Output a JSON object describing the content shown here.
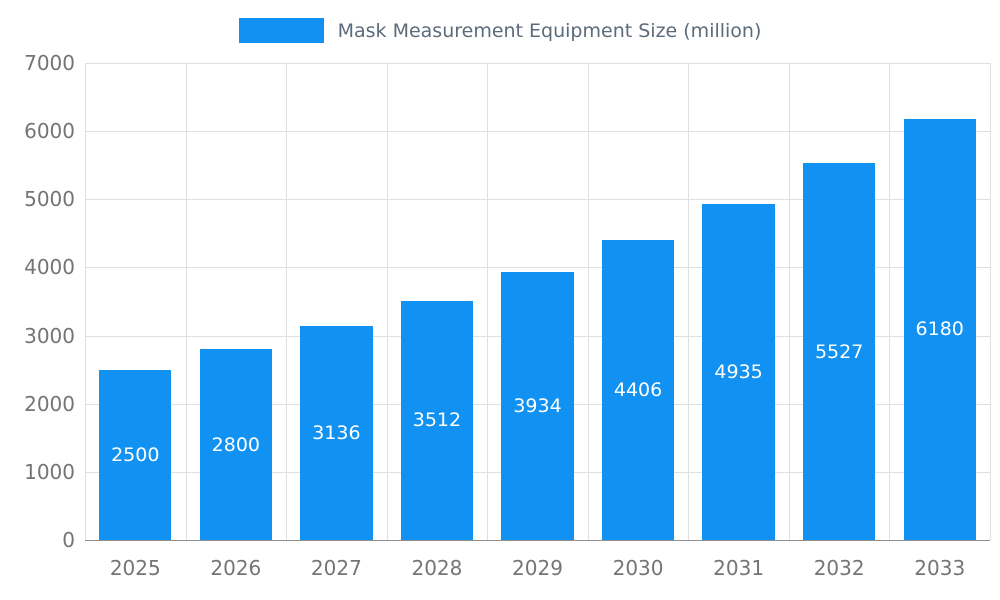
{
  "legend": {
    "label": "Mask Measurement Equipment Size (million)"
  },
  "chart_data": {
    "type": "bar",
    "title": "Mask Measurement Equipment Size (million)",
    "categories": [
      "2025",
      "2026",
      "2027",
      "2028",
      "2029",
      "2030",
      "2031",
      "2032",
      "2033"
    ],
    "values": [
      2500,
      2800,
      3136,
      3512,
      3934,
      4406,
      4935,
      5527,
      6180
    ],
    "xlabel": "",
    "ylabel": "",
    "ylim": [
      0,
      7000
    ],
    "ytick_step": 1000,
    "grid": true,
    "legend_position": "top-center",
    "bar_color": "#1191f1",
    "bar_label_color": "#ffffff",
    "axis_text_color": "#757575",
    "legend_text_color": "#5c6b7a",
    "grid_color": "#e0e0e0",
    "axis_line_color": "#8f8f8f"
  }
}
